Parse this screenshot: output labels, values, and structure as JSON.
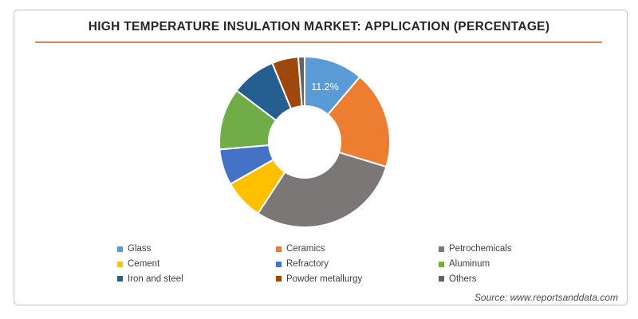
{
  "header": {
    "title": "HIGH TEMPERATURE INSULATION MARKET: APPLICATION (PERCENTAGE)",
    "underline_color": "#dc8355"
  },
  "source": {
    "text": "Source: www.reportsanddata.com"
  },
  "chart_data": {
    "type": "pie",
    "donut": true,
    "hole_ratio": 0.42,
    "start_angle_deg": 0,
    "direction": "clockwise",
    "legend_position": "bottom",
    "title": "HIGH TEMPERATURE INSULATION MARKET: APPLICATION (PERCENTAGE)",
    "data_label": {
      "text": "11.2%",
      "slice_index": 0
    },
    "slices": [
      {
        "label": "Glass",
        "value": 11.2,
        "color": "#5b9bd5",
        "show_label": true
      },
      {
        "label": "Ceramics",
        "value": 18.5,
        "color": "#ed7d31"
      },
      {
        "label": "Petrochemicals",
        "value": 29.5,
        "color": "#7b7777"
      },
      {
        "label": "Cement",
        "value": 7.6,
        "color": "#ffc000"
      },
      {
        "label": "Refractory",
        "value": 6.8,
        "color": "#4472c4"
      },
      {
        "label": "Aluminum",
        "value": 11.7,
        "color": "#70ad47"
      },
      {
        "label": "Iron and steel",
        "value": 8.5,
        "color": "#255e91"
      },
      {
        "label": "Powder metallurgy",
        "value": 5.0,
        "color": "#9e480e"
      },
      {
        "label": "Others",
        "value": 1.2,
        "color": "#636363"
      }
    ]
  }
}
